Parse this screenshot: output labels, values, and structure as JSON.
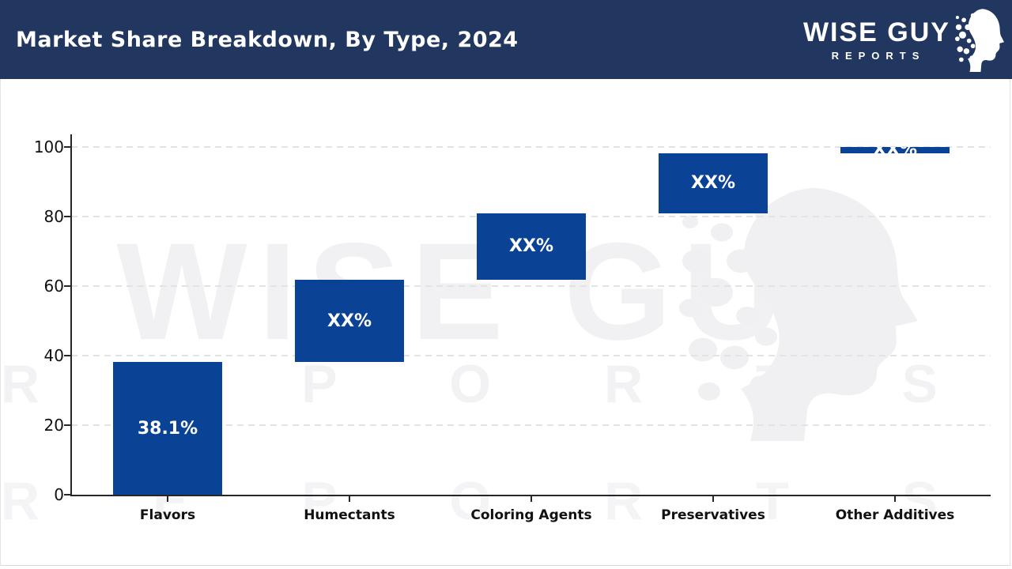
{
  "header": {
    "title": "Market Share Breakdown, By Type, 2024",
    "logo": {
      "line1": "WISE GUY",
      "line2": "REPORTS"
    }
  },
  "watermark": {
    "line1": "WISE GUY",
    "line2": "R E P O R T S"
  },
  "colors": {
    "header_background": "#21375f",
    "bar": "#0a4296",
    "bar_label": "#ffffff",
    "gridline": "#e3e3e3",
    "axis": "#262626"
  },
  "chart_data": {
    "type": "bar",
    "subtype": "waterfall",
    "title": "Market Share Breakdown, By Type, 2024",
    "categories": [
      "Flavors",
      "Humectants",
      "Coloring Agents",
      "Preservatives",
      "Other Additives"
    ],
    "segments": [
      {
        "category": "Flavors",
        "start": 0,
        "end": 38.1,
        "label": "38.1%"
      },
      {
        "category": "Humectants",
        "start": 38.1,
        "end": 61.8,
        "label": "XX%"
      },
      {
        "category": "Coloring Agents",
        "start": 61.8,
        "end": 81.0,
        "label": "XX%"
      },
      {
        "category": "Preservatives",
        "start": 81.0,
        "end": 98.2,
        "label": "XX%"
      },
      {
        "category": "Other Additives",
        "start": 98.2,
        "end": 100.0,
        "label": "XX%"
      }
    ],
    "xlabel": "",
    "ylabel": "",
    "y_ticks": [
      0,
      20,
      40,
      60,
      80,
      100
    ],
    "ylim": [
      0,
      103
    ],
    "grid": "horizontal-dashed",
    "legend": "none"
  }
}
